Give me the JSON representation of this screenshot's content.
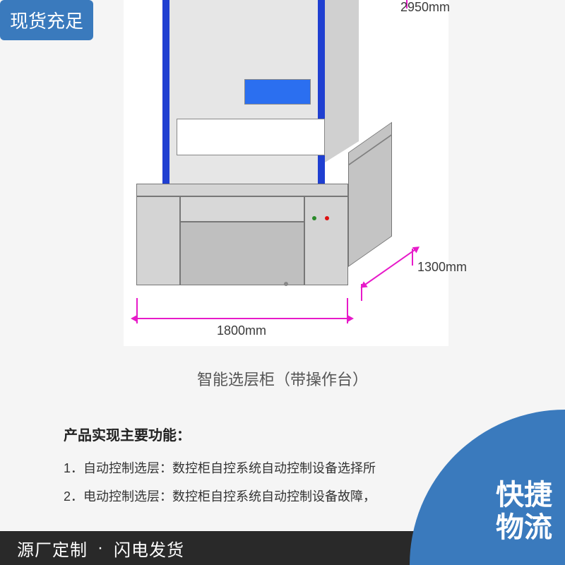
{
  "badges": {
    "stock": "现货充足",
    "promo_line1": "快捷",
    "promo_line2": "物流"
  },
  "diagram": {
    "caption": "智能选层柜（带操作台）",
    "dimensions": {
      "height": {
        "value": 2950,
        "unit": "mm",
        "label": "2950mm",
        "line_color": "#e71ac9"
      },
      "depth": {
        "value": 1300,
        "unit": "mm",
        "label": "1300mm",
        "line_color": "#e71ac9"
      },
      "width": {
        "value": 1800,
        "unit": "mm",
        "label": "1800mm",
        "line_color": "#e71ac9"
      }
    },
    "cabinet": {
      "body_color": "#e6e6e6",
      "frame_color": "#1f3fd1",
      "display_panel_color": "#2b6ff0",
      "side_shade_color": "#d0d0d0",
      "indicator_colors": {
        "power": "#2a8a2a",
        "fault": "#d11"
      }
    }
  },
  "text": {
    "section_title": "产品实现主要功能：",
    "functions": [
      {
        "n": "1．",
        "label": "自动控制选层：",
        "desc": "数控柜自控系统自动控制设备选择所"
      },
      {
        "n": "2．",
        "label": "电动控制选层：",
        "desc": "数控柜自控系统自动控制设备故障，"
      }
    ]
  },
  "bottom_bar": {
    "left": "源厂定制",
    "right": "闪电发货"
  },
  "style": {
    "badge_bg": "#3a7abd",
    "page_bg": "#f5f5f5",
    "caption_color": "#555",
    "text_color": "#333",
    "title_color": "#222",
    "dim_label_color": "#3b3b3b",
    "bottom_bar_bg": "#292929"
  }
}
